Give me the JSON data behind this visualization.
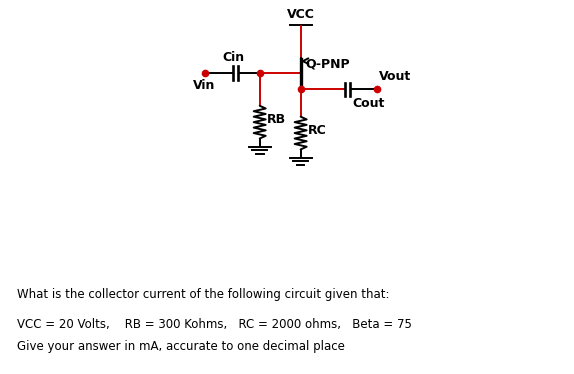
{
  "bg_color": "#ffffff",
  "wire_color": "#000000",
  "node_color": "#cc0000",
  "figsize": [
    5.74,
    3.74
  ],
  "dpi": 100,
  "text_lines": [
    "What is the collector current of the following circuit given that:",
    "VCC = 20 Volts,    RB = 300 Kohms,   RC = 2000 ohms,   Beta = 75",
    "Give your answer in mA, accurate to one decimal place"
  ]
}
